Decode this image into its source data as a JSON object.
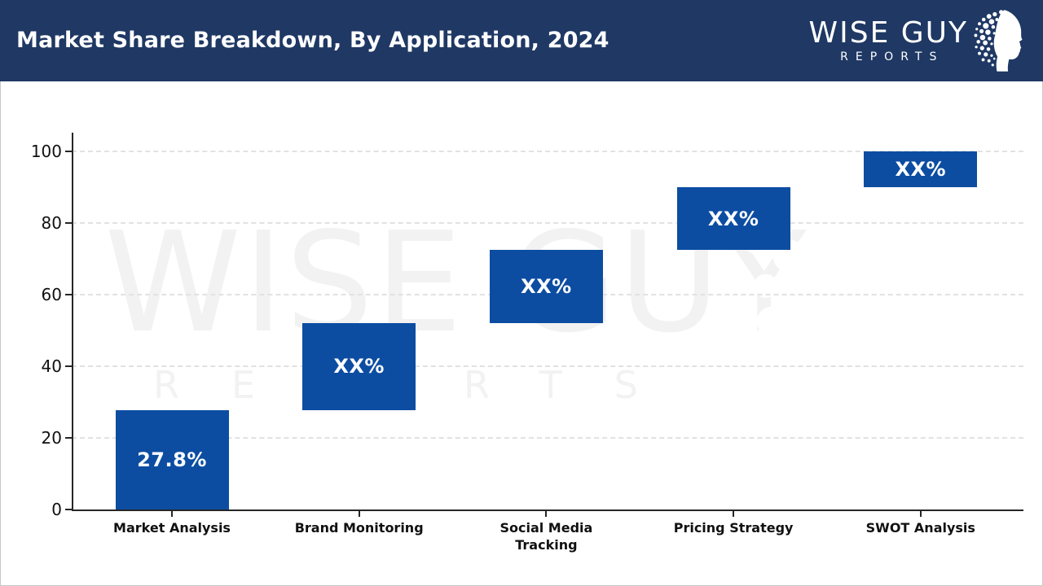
{
  "header": {
    "title": "Market Share Breakdown, By Application, 2024",
    "logo": {
      "wordmark": "WISE GUY",
      "subtext": "REPORTS"
    }
  },
  "watermark": {
    "wordmark": "WISE GUY",
    "subtext": "REPORTS"
  },
  "chart_data": {
    "type": "bar",
    "subtype": "waterfall",
    "title": "Market Share Breakdown, By Application, 2024",
    "categories": [
      "Market Analysis",
      "Brand Monitoring",
      "Social Media Tracking",
      "Pricing Strategy",
      "SWOT Analysis"
    ],
    "series": [
      {
        "name": "Market share (%)",
        "segments": [
          {
            "category": "Market Analysis",
            "start": 0,
            "end": 27.8,
            "label": "27.8%"
          },
          {
            "category": "Brand Monitoring",
            "start": 27.8,
            "end": 52,
            "label": "XX%"
          },
          {
            "category": "Social Media Tracking",
            "start": 52,
            "end": 72.5,
            "label": "XX%"
          },
          {
            "category": "Pricing Strategy",
            "start": 72.5,
            "end": 90,
            "label": "XX%"
          },
          {
            "category": "SWOT Analysis",
            "start": 90,
            "end": 100,
            "label": "XX%"
          }
        ]
      }
    ],
    "xlabel": "",
    "ylabel": "",
    "ylim": [
      0,
      100
    ],
    "yticks": [
      0,
      20,
      40,
      60,
      80,
      100
    ],
    "grid": "horizontal-dashed",
    "legend": "none",
    "colors": {
      "bar": "#0c4da2",
      "bar_label": "#ffffff",
      "header_bg": "#1f3864",
      "watermark": "#f2f2f2",
      "axis": "#262626",
      "gridline": "#e2e2e2"
    }
  }
}
